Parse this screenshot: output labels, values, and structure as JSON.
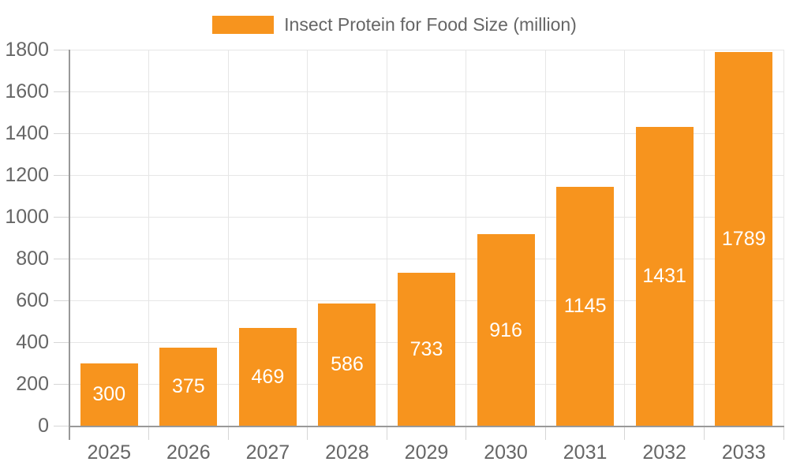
{
  "chart_data": {
    "type": "bar",
    "title": "",
    "legend": "Insect Protein for Food Size (million)",
    "legend_position": "top-center",
    "categories": [
      "2025",
      "2026",
      "2027",
      "2028",
      "2029",
      "2030",
      "2031",
      "2032",
      "2033"
    ],
    "values": [
      300,
      375,
      469,
      586,
      733,
      916,
      1145,
      1431,
      1789
    ],
    "xlabel": "",
    "ylabel": "",
    "ylim": [
      0,
      1800
    ],
    "ytick_step": 200,
    "ytick_labels": [
      "0",
      "200",
      "400",
      "600",
      "800",
      "1000",
      "1200",
      "1400",
      "1600",
      "1800"
    ],
    "grid": true,
    "colors": {
      "bar": "#F7941E",
      "bar_label": "#FFFFFF",
      "axis_label": "#666666",
      "legend_text": "#666666",
      "gridline": "#E6E6E6",
      "tick": "#D6D6D6",
      "axis_line": "#999999",
      "background": "#FFFFFF"
    }
  }
}
